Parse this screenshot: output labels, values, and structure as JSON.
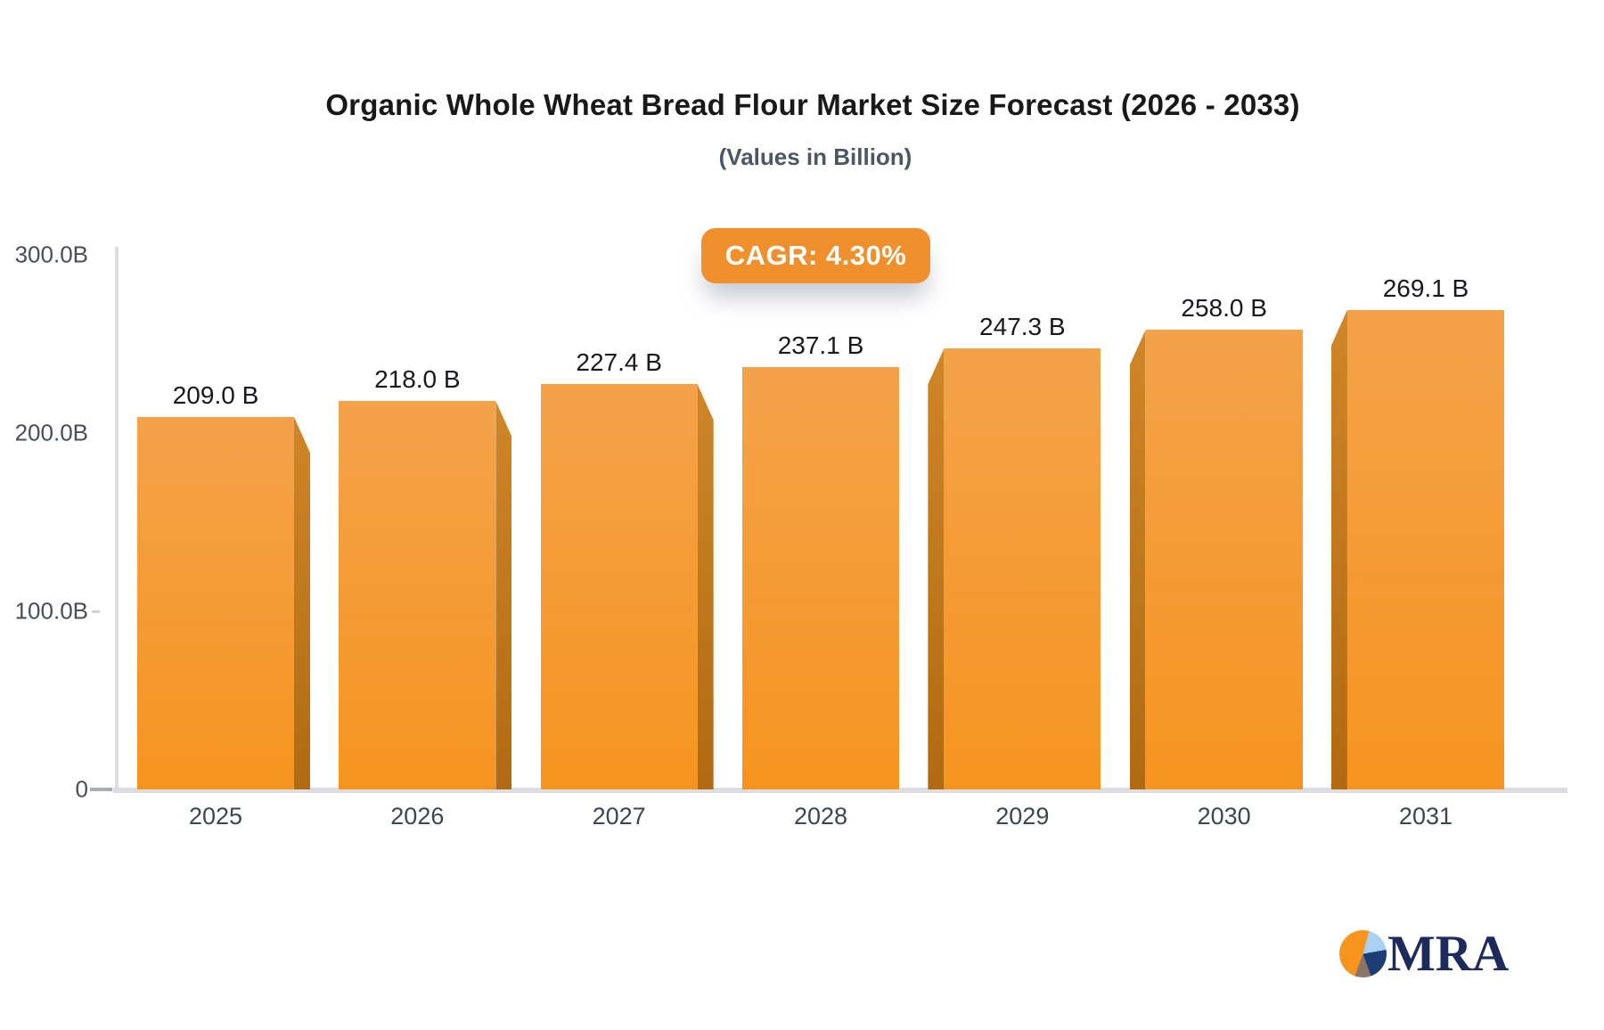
{
  "header": {
    "title": "Organic Whole Wheat Bread Flour Market Size Forecast (2026 - 2033)",
    "subtitle": "(Values in Billion)",
    "badge_label": "CAGR: 4.30%"
  },
  "chart_data": {
    "type": "bar",
    "title": "Organic Whole Wheat Bread Flour Market Size Forecast (2026 - 2033)",
    "subtitle": "(Values in Billion)",
    "cagr": "4.30%",
    "categories": [
      "2025",
      "2026",
      "2027",
      "2028",
      "2029",
      "2030",
      "2031"
    ],
    "values": [
      209.0,
      218.0,
      227.4,
      237.1,
      247.3,
      258.0,
      269.1
    ],
    "value_labels": [
      "209.0 B",
      "218.0 B",
      "227.4 B",
      "237.1 B",
      "247.3 B",
      "258.0 B",
      "269.1 B"
    ],
    "unit": "Billion",
    "ylim": [
      0,
      300
    ],
    "y_ticks": [
      {
        "label": "300.0B",
        "value": 300
      },
      {
        "label": "200.0B",
        "value": 200
      },
      {
        "label": "100.0B",
        "value": 100
      },
      {
        "label": "0",
        "value": 0
      }
    ],
    "grid": "off",
    "legend": "none",
    "bar_style": "3d-orange"
  },
  "logo": {
    "text": "MRA",
    "icon": "pie-chart-icon"
  },
  "colors": {
    "title_color": "#191919",
    "subtitle_color": "#4b5666",
    "badge_bg": "#f0902c",
    "badge_text": "#ffffff",
    "bar_face_top": "#f3a24b",
    "bar_face_bottom": "#f7941f",
    "bar_side_top": "#cf8628",
    "bar_side_bottom": "#b26a12",
    "axis_line": "#dcdde3",
    "y_label_color": "#484d58",
    "x_label_color": "#3c4551",
    "value_label_color": "#17191e",
    "logo_orange": "#f7941e",
    "logo_lightblue": "#a8d2ef",
    "logo_navy": "#1d3e74",
    "logo_taupe": "#8c7568",
    "logo_text_color": "#1c2a5c"
  }
}
